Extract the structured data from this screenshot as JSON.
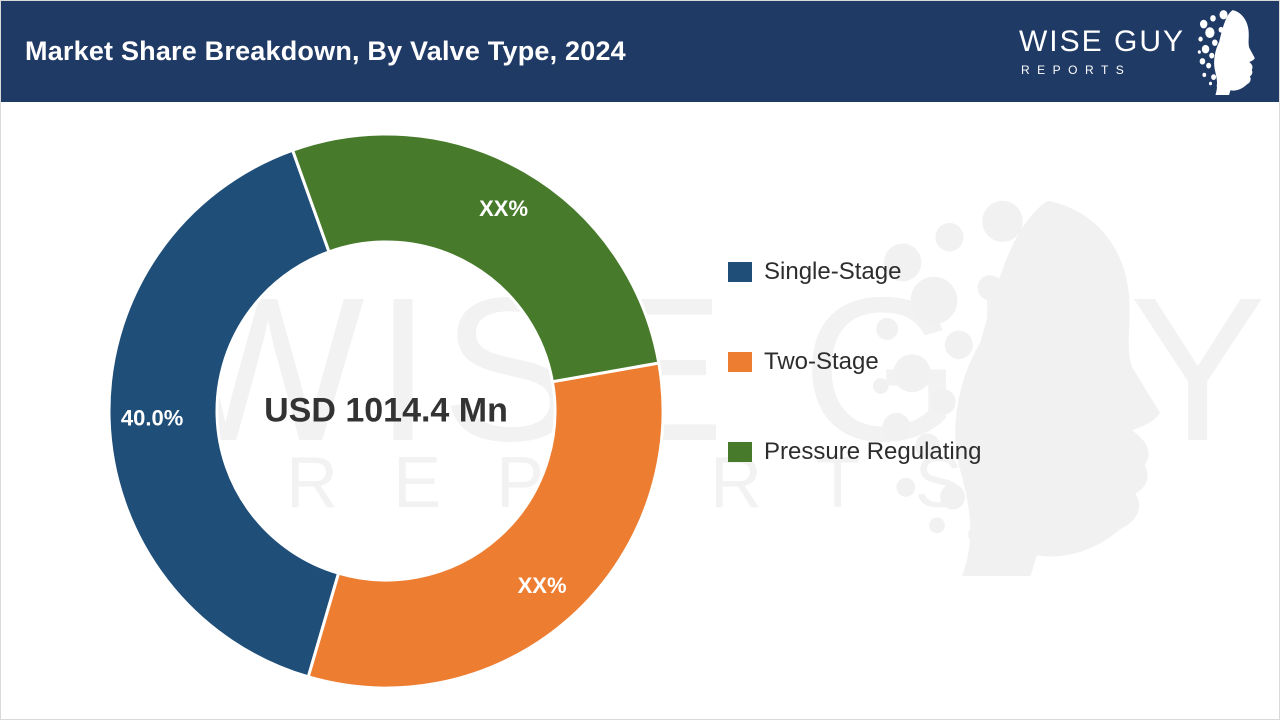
{
  "header": {
    "title": "Market Share Breakdown, By Valve Type, 2024",
    "bg_color": "#203a66",
    "logo": {
      "line1": "WISE GUY",
      "line2": "REPORTS"
    }
  },
  "watermark": {
    "line1": "WISE GUY",
    "line2": "REPORTS"
  },
  "chart_data": {
    "type": "pie",
    "subtype": "donut",
    "title": "Market Share Breakdown, By Valve Type, 2024",
    "center_label": "USD 1014.4 Mn",
    "hole_ratio": 0.61,
    "rotation_deg": -19.7,
    "direction": "counterclockwise",
    "legend_position": "right",
    "segments": [
      {
        "name": "Single-Stage",
        "value_pct": 40.0,
        "display_label": "40.0%",
        "color": "#1F4E79"
      },
      {
        "name": "Two-Stage",
        "value_pct": 32.3,
        "display_label": "XX%",
        "color": "#ED7D31"
      },
      {
        "name": "Pressure Regulating",
        "value_pct": 27.7,
        "display_label": "XX%",
        "color": "#477B2B"
      }
    ]
  }
}
